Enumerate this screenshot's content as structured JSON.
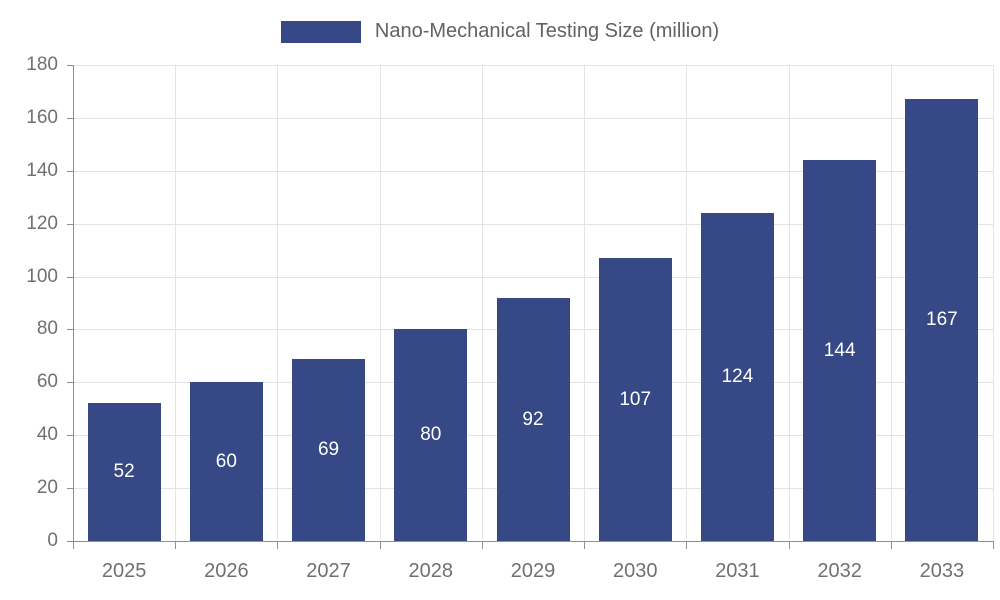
{
  "chart_data": {
    "type": "bar",
    "title": "",
    "legend": {
      "label": "Nano-Mechanical Testing Size (million)",
      "position": "top-center"
    },
    "categories": [
      "2025",
      "2026",
      "2027",
      "2028",
      "2029",
      "2030",
      "2031",
      "2032",
      "2033"
    ],
    "values": [
      52,
      60,
      69,
      80,
      92,
      107,
      124,
      144,
      167
    ],
    "value_labels_inside_bars": true,
    "xlabel": "",
    "ylabel": "",
    "ylim": [
      0,
      180
    ],
    "ytick_step": 20,
    "grid": true,
    "colors": {
      "bar": "#364885",
      "bar_value_text": "#ffffff",
      "axis_line": "#8f8f8f",
      "gridline": "#e4e4e8",
      "tick_text": "#6e7174",
      "legend_text": "#5f6266",
      "background": "#ffffff"
    }
  }
}
